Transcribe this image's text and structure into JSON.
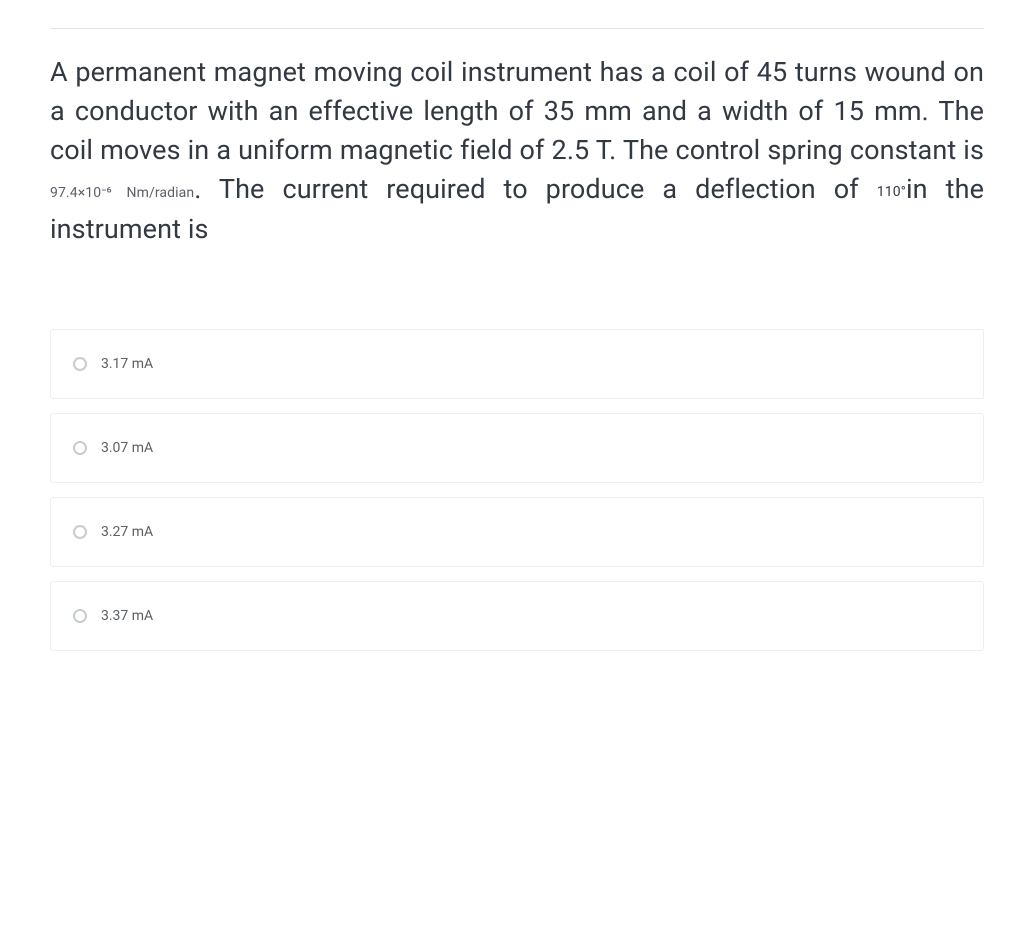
{
  "question": {
    "part1": "A permanent magnet moving coil instrument has a coil of 45 turns wound on a conductor with an effective length of 35 mm and a width of 15 mm. The coil moves in a uniform magnetic field of 2.5 T. The control spring constant is ",
    "spring_constant": "97.4×10⁻⁶ Nm/radian",
    "part2": ". The current required to produce a deflection of ",
    "deflection": "110°",
    "part3": "in the instrument is"
  },
  "options": [
    {
      "label": "3.17 mA"
    },
    {
      "label": "3.07 mA"
    },
    {
      "label": "3.27 mA"
    },
    {
      "label": "3.37 mA"
    }
  ],
  "colors": {
    "text_primary": "#333943",
    "text_option": "#5b6066",
    "border_option": "#eceef0",
    "radio_border": "#c7ccd1",
    "background": "#ffffff"
  }
}
